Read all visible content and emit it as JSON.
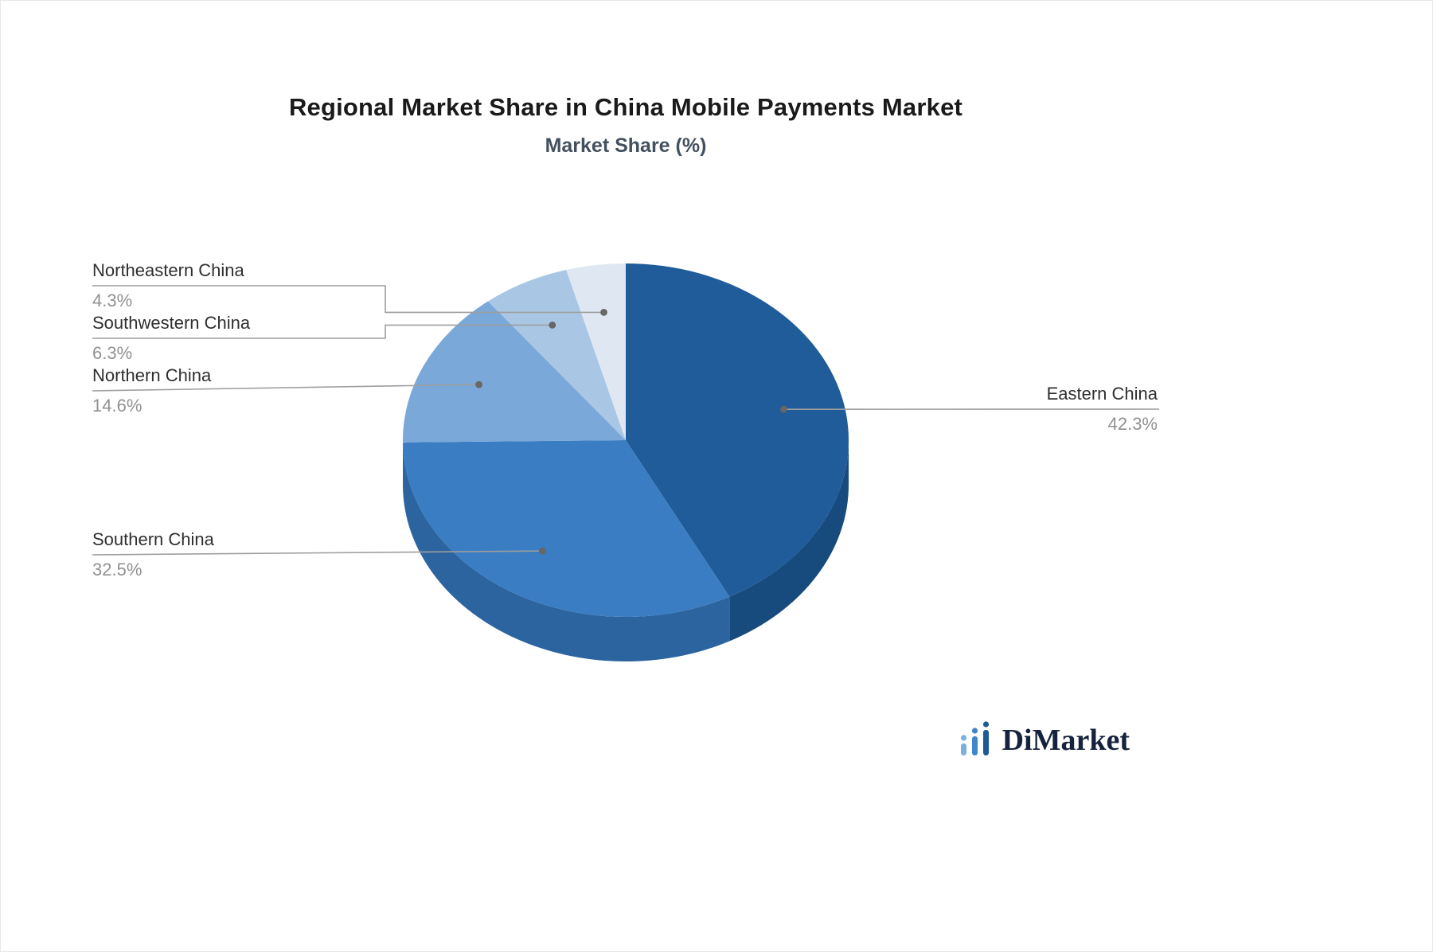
{
  "title": "Regional Market Share in China Mobile Payments Market",
  "subtitle": "Market Share (%)",
  "branding": {
    "logo_text": "DiMarket"
  },
  "chart_data": {
    "type": "pie",
    "style": "3d",
    "title": "Regional Market Share in China Mobile Payments Market",
    "subtitle": "Market Share (%)",
    "series_name": "Market Share",
    "unit": "%",
    "order": "clockwise-from-top",
    "legend_position": "none",
    "labels": [
      "Eastern China",
      "Southern China",
      "Northern China",
      "Southwestern China",
      "Northeastern China"
    ],
    "values": [
      42.3,
      32.5,
      14.6,
      6.3,
      4.3
    ],
    "percent_labels": [
      "42.3%",
      "32.5%",
      "14.6%",
      "6.3%",
      "4.3%"
    ],
    "colors": [
      "#1f5c99",
      "#3a7dc2",
      "#7aa8d8",
      "#a9c7e5",
      "#dfe8f2"
    ],
    "side_colors": [
      "#174a7d",
      "#2c64a0",
      "#6089b3",
      "#8aa9c9",
      "#bcc9d9"
    ],
    "connector_color": "#9e9e9e",
    "dot_color": "#676767"
  }
}
